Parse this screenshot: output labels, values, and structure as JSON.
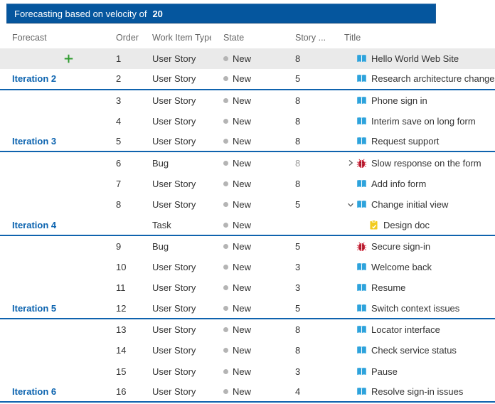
{
  "topbar": {
    "label": "Forecasting based on velocity of",
    "velocity": "20"
  },
  "columns": [
    {
      "label": "Forecast"
    },
    {
      "label": "Order"
    },
    {
      "label": "Work Item Type"
    },
    {
      "label": "State"
    },
    {
      "label": "Story ..."
    },
    {
      "label": "Title"
    }
  ],
  "colors": {
    "topbar_bg": "#05569E",
    "forecast_text": "#0B63AF",
    "forecast_line": "#0F63AE",
    "selected_row_bg": "#EAEAEA",
    "header_text": "#666666",
    "cell_text": "#333333",
    "muted_points": "#9B9B9B",
    "state_dot": "#B4B4B4",
    "add_plus_green": "#2F9B2F",
    "user_story_icon": "#2EA3DC",
    "bug_icon": "#CC293D",
    "task_icon": "#F2CB1D"
  },
  "rows": [
    {
      "forecast": "",
      "add": true,
      "order": "1",
      "type": "User Story",
      "state": "New",
      "points": "8",
      "points_muted": false,
      "chevron": null,
      "child": false,
      "icon": "user-story-icon",
      "title": "Hello World Web Site",
      "selected": true,
      "divider": false
    },
    {
      "forecast": "Iteration 2",
      "add": false,
      "order": "2",
      "type": "User Story",
      "state": "New",
      "points": "5",
      "points_muted": false,
      "chevron": null,
      "child": false,
      "icon": "user-story-icon",
      "title": "Research architecture changes",
      "selected": false,
      "divider": true
    },
    {
      "forecast": "",
      "add": false,
      "order": "3",
      "type": "User Story",
      "state": "New",
      "points": "8",
      "points_muted": false,
      "chevron": null,
      "child": false,
      "icon": "user-story-icon",
      "title": "Phone sign in",
      "selected": false,
      "divider": false
    },
    {
      "forecast": "",
      "add": false,
      "order": "4",
      "type": "User Story",
      "state": "New",
      "points": "8",
      "points_muted": false,
      "chevron": null,
      "child": false,
      "icon": "user-story-icon",
      "title": "Interim save on long form",
      "selected": false,
      "divider": false
    },
    {
      "forecast": "Iteration 3",
      "add": false,
      "order": "5",
      "type": "User Story",
      "state": "New",
      "points": "8",
      "points_muted": false,
      "chevron": null,
      "child": false,
      "icon": "user-story-icon",
      "title": "Request support",
      "selected": false,
      "divider": true
    },
    {
      "forecast": "",
      "add": false,
      "order": "6",
      "type": "Bug",
      "state": "New",
      "points": "8",
      "points_muted": true,
      "chevron": "collapsed",
      "child": false,
      "icon": "bug-icon",
      "title": "Slow response on the form",
      "selected": false,
      "divider": false
    },
    {
      "forecast": "",
      "add": false,
      "order": "7",
      "type": "User Story",
      "state": "New",
      "points": "8",
      "points_muted": false,
      "chevron": null,
      "child": false,
      "icon": "user-story-icon",
      "title": "Add info form",
      "selected": false,
      "divider": false
    },
    {
      "forecast": "",
      "add": false,
      "order": "8",
      "type": "User Story",
      "state": "New",
      "points": "5",
      "points_muted": false,
      "chevron": "expanded",
      "child": false,
      "icon": "user-story-icon",
      "title": "Change initial view",
      "selected": false,
      "divider": false
    },
    {
      "forecast": "Iteration 4",
      "add": false,
      "order": "",
      "type": "Task",
      "state": "New",
      "points": "",
      "points_muted": false,
      "chevron": null,
      "child": true,
      "icon": "task-icon",
      "title": "Design doc",
      "selected": false,
      "divider": true
    },
    {
      "forecast": "",
      "add": false,
      "order": "9",
      "type": "Bug",
      "state": "New",
      "points": "5",
      "points_muted": false,
      "chevron": null,
      "child": false,
      "icon": "bug-icon",
      "title": "Secure sign-in",
      "selected": false,
      "divider": false
    },
    {
      "forecast": "",
      "add": false,
      "order": "10",
      "type": "User Story",
      "state": "New",
      "points": "3",
      "points_muted": false,
      "chevron": null,
      "child": false,
      "icon": "user-story-icon",
      "title": "Welcome back",
      "selected": false,
      "divider": false
    },
    {
      "forecast": "",
      "add": false,
      "order": "11",
      "type": "User Story",
      "state": "New",
      "points": "3",
      "points_muted": false,
      "chevron": null,
      "child": false,
      "icon": "user-story-icon",
      "title": "Resume",
      "selected": false,
      "divider": false
    },
    {
      "forecast": "Iteration 5",
      "add": false,
      "order": "12",
      "type": "User Story",
      "state": "New",
      "points": "5",
      "points_muted": false,
      "chevron": null,
      "child": false,
      "icon": "user-story-icon",
      "title": "Switch context issues",
      "selected": false,
      "divider": true
    },
    {
      "forecast": "",
      "add": false,
      "order": "13",
      "type": "User Story",
      "state": "New",
      "points": "8",
      "points_muted": false,
      "chevron": null,
      "child": false,
      "icon": "user-story-icon",
      "title": "Locator interface",
      "selected": false,
      "divider": false
    },
    {
      "forecast": "",
      "add": false,
      "order": "14",
      "type": "User Story",
      "state": "New",
      "points": "8",
      "points_muted": false,
      "chevron": null,
      "child": false,
      "icon": "user-story-icon",
      "title": "Check service status",
      "selected": false,
      "divider": false
    },
    {
      "forecast": "",
      "add": false,
      "order": "15",
      "type": "User Story",
      "state": "New",
      "points": "3",
      "points_muted": false,
      "chevron": null,
      "child": false,
      "icon": "user-story-icon",
      "title": "Pause",
      "selected": false,
      "divider": false
    },
    {
      "forecast": "Iteration 6",
      "add": false,
      "order": "16",
      "type": "User Story",
      "state": "New",
      "points": "4",
      "points_muted": false,
      "chevron": null,
      "child": false,
      "icon": "user-story-icon",
      "title": "Resolve sign-in issues",
      "selected": false,
      "divider": true
    }
  ]
}
